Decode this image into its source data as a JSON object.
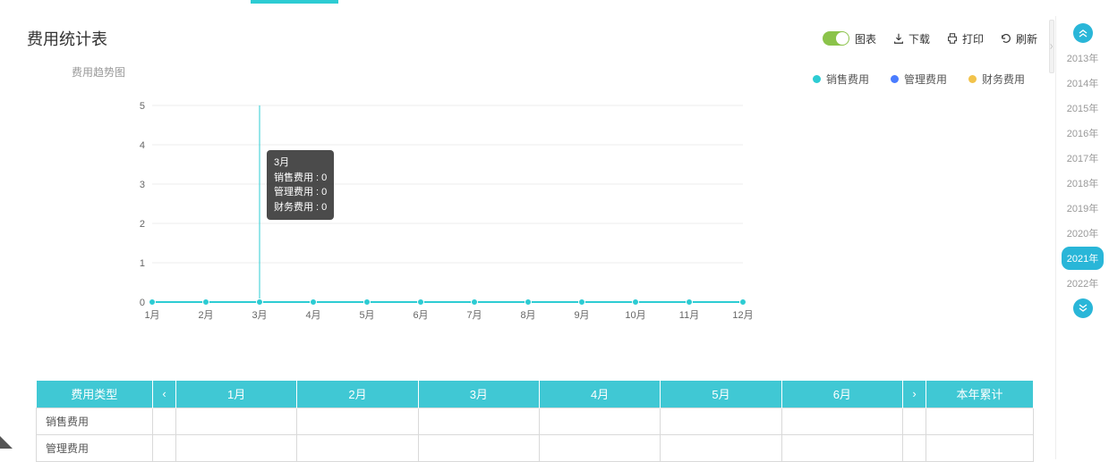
{
  "header": {
    "title": "费用统计表",
    "switch_label": "图表",
    "download_label": "下载",
    "print_label": "打印",
    "refresh_label": "刷新"
  },
  "colors": {
    "accent": "#2dccd3",
    "series_sales": "#2dccd3",
    "series_mgmt": "#4a7cff",
    "series_fin": "#f2c34b",
    "switch_on": "#8bc34a",
    "table_header": "#40c8d4",
    "year_active": "#29b6d8"
  },
  "chart": {
    "subtitle": "费用趋势图",
    "type": "line",
    "legend": [
      {
        "label": "销售费用",
        "color": "#2dccd3"
      },
      {
        "label": "管理费用",
        "color": "#4a7cff"
      },
      {
        "label": "财务费用",
        "color": "#f2c34b"
      }
    ],
    "x_categories": [
      "1月",
      "2月",
      "3月",
      "4月",
      "5月",
      "6月",
      "7月",
      "8月",
      "9月",
      "10月",
      "11月",
      "12月"
    ],
    "y_ticks": [
      0,
      1,
      2,
      3,
      4,
      5
    ],
    "ylim": [
      0,
      5
    ],
    "series": {
      "销售费用": [
        0,
        0,
        0,
        0,
        0,
        0,
        0,
        0,
        0,
        0,
        0,
        0
      ],
      "管理费用": [
        0,
        0,
        0,
        0,
        0,
        0,
        0,
        0,
        0,
        0,
        0,
        0
      ],
      "财务费用": [
        0,
        0,
        0,
        0,
        0,
        0,
        0,
        0,
        0,
        0,
        0,
        0
      ]
    },
    "crosshair_index": 2,
    "tooltip": {
      "title": "3月",
      "rows": [
        {
          "label": "销售费用",
          "value": "0"
        },
        {
          "label": "管理费用",
          "value": "0"
        },
        {
          "label": "财务费用",
          "value": "0"
        }
      ]
    }
  },
  "table": {
    "row_header_col": "费用类型",
    "columns": [
      "1月",
      "2月",
      "3月",
      "4月",
      "5月",
      "6月"
    ],
    "total_col": "本年累计",
    "rows": [
      {
        "label": "销售费用",
        "cells": [
          "",
          "",
          "",
          "",
          "",
          ""
        ],
        "total": ""
      },
      {
        "label": "管理费用",
        "cells": [
          "",
          "",
          "",
          "",
          "",
          ""
        ],
        "total": ""
      }
    ]
  },
  "years": {
    "list": [
      "2013年",
      "2014年",
      "2015年",
      "2016年",
      "2017年",
      "2018年",
      "2019年",
      "2020年",
      "2021年",
      "2022年"
    ],
    "active": "2021年"
  }
}
